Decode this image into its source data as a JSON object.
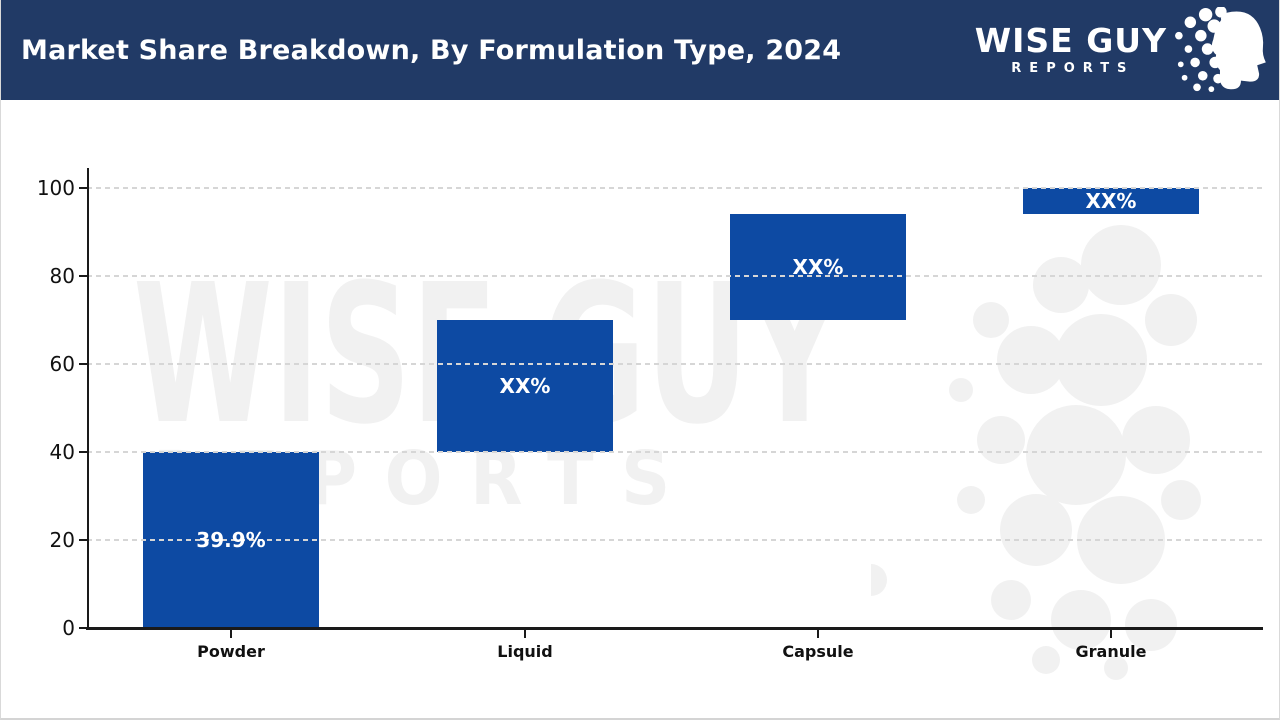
{
  "header": {
    "title": "Market Share Breakdown, By Formulation Type, 2024",
    "logo": {
      "line1": "WISE GUY",
      "line2": "REPORTS"
    },
    "bg_color": "#213a66"
  },
  "watermark": {
    "line1": "WISE GUY",
    "line2": "REPORTS"
  },
  "chart_data": {
    "type": "bar",
    "subtype": "waterfall",
    "title": "Market Share Breakdown, By Formulation Type, 2024",
    "categories": [
      "Powder",
      "Liquid",
      "Capsule",
      "Granule"
    ],
    "segments": [
      {
        "category": "Powder",
        "start": 0,
        "end": 39.9,
        "label": "39.9%"
      },
      {
        "category": "Liquid",
        "start": 39.9,
        "end": 70,
        "label": "XX%"
      },
      {
        "category": "Capsule",
        "start": 70,
        "end": 94,
        "label": "XX%"
      },
      {
        "category": "Granule",
        "start": 94,
        "end": 100,
        "label": "XX%"
      }
    ],
    "y_ticks": [
      0,
      20,
      40,
      60,
      80,
      100
    ],
    "ylim": [
      0,
      100
    ],
    "xlabel": "",
    "ylabel": "",
    "bar_color": "#0d4aa3",
    "grid": "dashed horizontal, drawn above bars",
    "legend": "none"
  }
}
